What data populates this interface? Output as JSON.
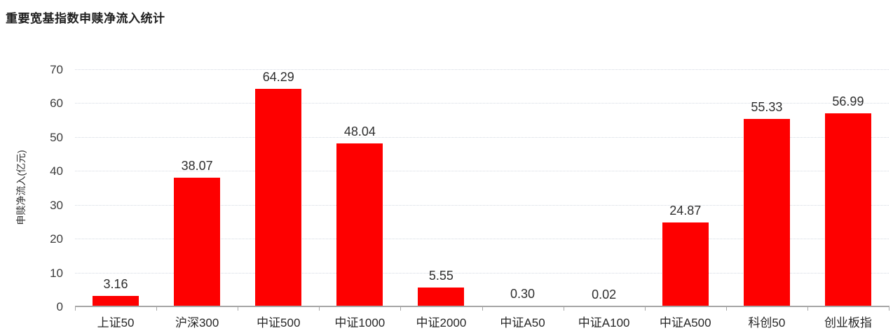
{
  "title": "重要宽基指数申赎净流入统计",
  "colors": {
    "bar": "#fe0000",
    "gridline": "#d4d9e2",
    "axis_line": "#a6a6a6",
    "title_text": "#1f1f1f",
    "label_text": "#2e2e2e"
  },
  "chart_data": {
    "type": "bar",
    "title": "重要宽基指数申赎净流入统计",
    "categories": [
      "上证50",
      "沪深300",
      "中证500",
      "中证1000",
      "中证2000",
      "中证A50",
      "中证A100",
      "中证A500",
      "科创50",
      "创业板指"
    ],
    "values": [
      3.16,
      38.07,
      64.29,
      48.04,
      5.55,
      0.3,
      0.02,
      24.87,
      55.33,
      56.99
    ],
    "value_labels": [
      "3.16",
      "38.07",
      "64.29",
      "48.04",
      "5.55",
      "0.30",
      "0.02",
      "24.87",
      "55.33",
      "56.99"
    ],
    "xlabel": "",
    "ylabel": "申赎净流入(亿元)",
    "ylim": [
      0,
      70
    ],
    "yticks": [
      0,
      10,
      20,
      30,
      40,
      50,
      60,
      70
    ],
    "grid": "horizontal-dotted",
    "legend": "none",
    "bar_color": "#fe0000"
  }
}
